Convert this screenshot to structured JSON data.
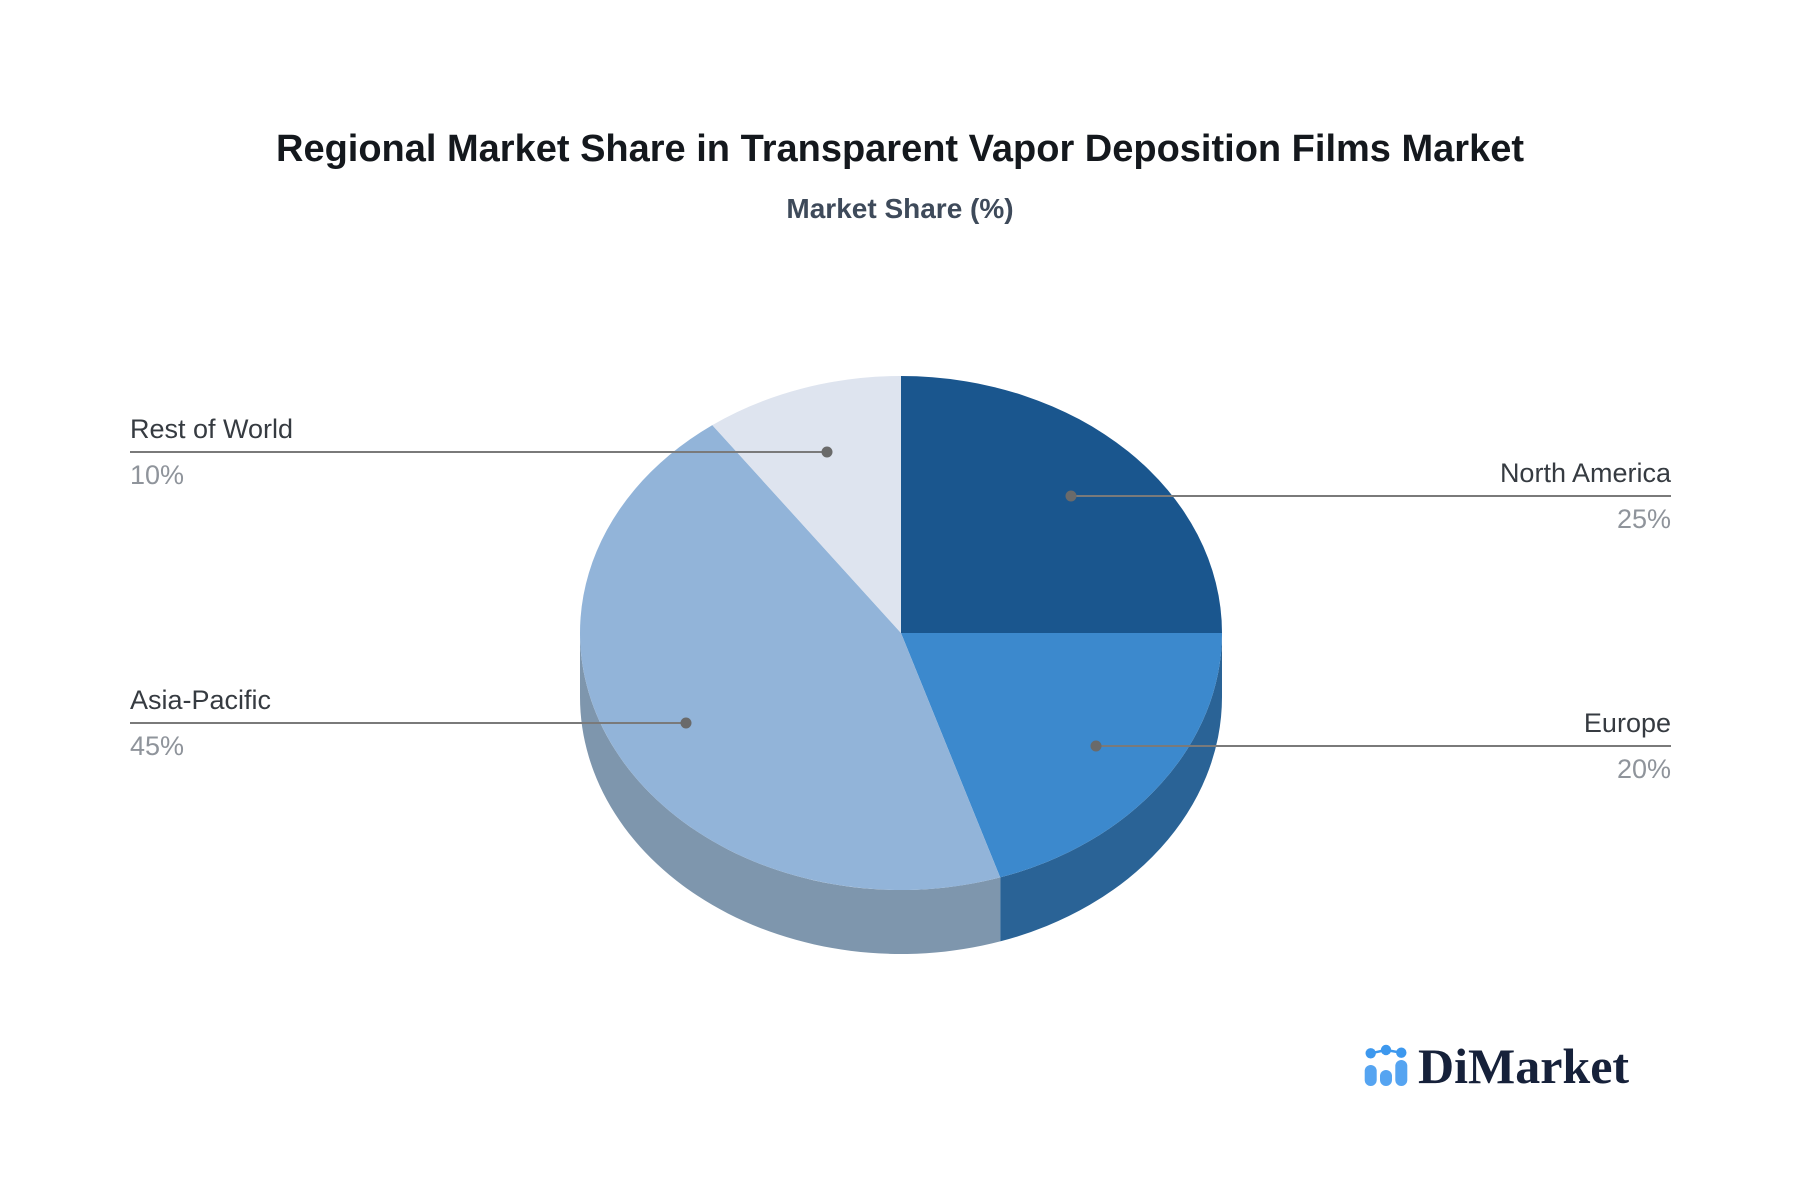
{
  "chart": {
    "title": "Regional Market Share in Transparent Vapor Deposition Films Market",
    "subtitle": "Market Share (%)"
  },
  "chart_data": {
    "type": "pie",
    "title": "Regional Market Share in Transparent Vapor Deposition Films Market",
    "subtitle": "Market Share (%)",
    "unit": "%",
    "style": "3d-pie",
    "direction": "clockwise",
    "start_angle_deg": 0,
    "legend": "none",
    "categories": [
      "North America",
      "Europe",
      "Asia-Pacific",
      "Rest of World"
    ],
    "values": [
      25,
      20,
      45,
      10
    ],
    "slices": [
      {
        "label": "North America",
        "value": 25,
        "value_label": "25%",
        "color": "#1a568e",
        "side_color": "#154b7d",
        "label_side": "right"
      },
      {
        "label": "Europe",
        "value": 20,
        "value_label": "20%",
        "color": "#3c89cd",
        "side_color": "#2a6396",
        "label_side": "right"
      },
      {
        "label": "Asia-Pacific",
        "value": 45,
        "value_label": "45%",
        "color": "#92b4d9",
        "side_color": "#7e96ad",
        "label_side": "left"
      },
      {
        "label": "Rest of World",
        "value": 10,
        "value_label": "10%",
        "color": "#dee4ef",
        "side_color": "#bcc5d4",
        "label_side": "left"
      }
    ],
    "leader_line_color": "#7a7a7a",
    "leader_dot_color": "#6a6a6a"
  },
  "branding": {
    "logo_text": "DiMarket",
    "logo_icon": "bar-chart-icon"
  }
}
